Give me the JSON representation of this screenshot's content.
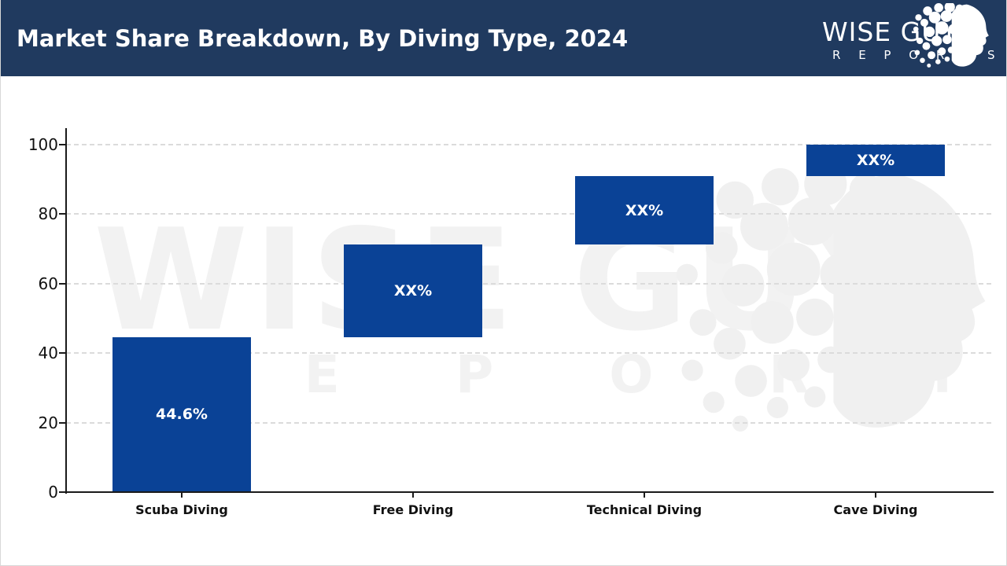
{
  "header": {
    "title": "Market Share Breakdown, By Diving Type, 2024",
    "bg_color": "#203a5f",
    "logo": {
      "wordmark": "WISE GUY",
      "subtext": "R E P O R T S"
    }
  },
  "watermark": {
    "line1": "WISE GUY",
    "line2": "R E P O R T S"
  },
  "chart_data": {
    "type": "bar",
    "subtype": "waterfall",
    "title": "Market Share Breakdown, By Diving Type, 2024",
    "categories": [
      "Scuba Diving",
      "Free Diving",
      "Technical Diving",
      "Cave Diving"
    ],
    "segments": [
      {
        "category": "Scuba Diving",
        "label": "44.6%",
        "start": 0,
        "end": 44.6,
        "value": 44.6
      },
      {
        "category": "Free Diving",
        "label": "XX%",
        "start": 44.6,
        "end": 71.2,
        "value": 26.6
      },
      {
        "category": "Technical Diving",
        "label": "XX%",
        "start": 71.2,
        "end": 91.0,
        "value": 19.8
      },
      {
        "category": "Cave Diving",
        "label": "XX%",
        "start": 91.0,
        "end": 100.0,
        "value": 9.0
      }
    ],
    "y_ticks": [
      0,
      20,
      40,
      60,
      80,
      100
    ],
    "ylim": [
      0,
      104.8
    ],
    "xlabel": "",
    "ylabel": "",
    "legend": "none",
    "grid": "horizontal-dashed",
    "bar_color": "#0a4296",
    "bar_label_color": "#ffffff",
    "axis_color": "#1a1a1a",
    "grid_color": "#dbdbdb"
  }
}
